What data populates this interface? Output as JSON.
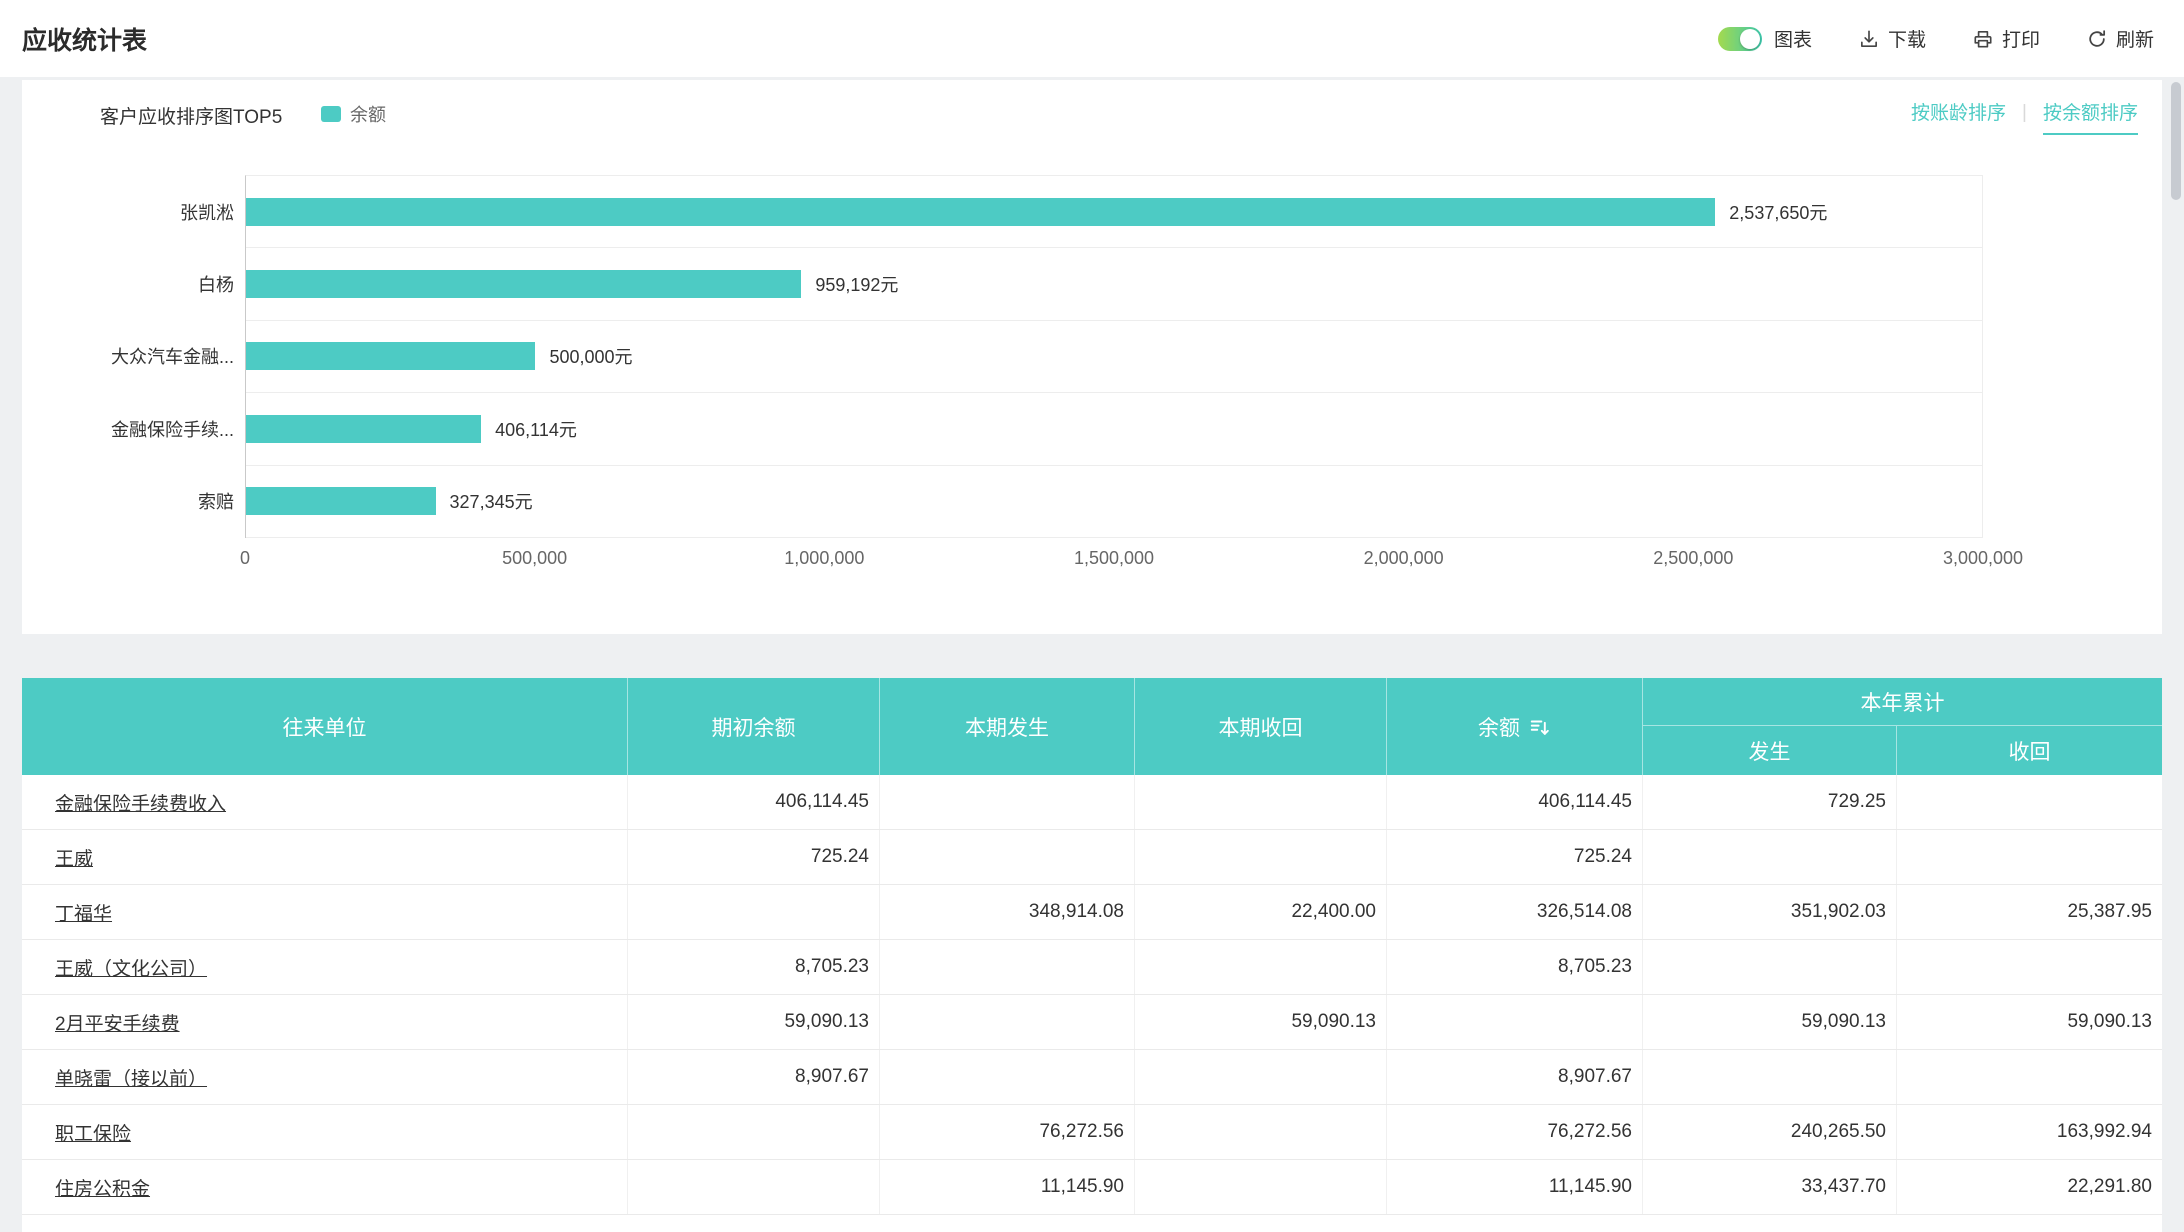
{
  "page": {
    "title": "应收统计表"
  },
  "toolbar": {
    "chart_toggle_label": "图表",
    "download_label": "下载",
    "print_label": "打印",
    "refresh_label": "刷新",
    "icons": [
      "toggle-switch",
      "download-icon",
      "printer-icon",
      "refresh-icon"
    ]
  },
  "chart_panel": {
    "title": "客户应收排序图TOP5",
    "legend_label": "余额",
    "sort_aging_label": "按账龄排序",
    "sort_divider": "|",
    "sort_balance_label": "按余额排序"
  },
  "chart_data": {
    "type": "bar",
    "orientation": "horizontal",
    "title": "客户应收排序图TOP5",
    "legend": [
      "余额"
    ],
    "legend_position": "top",
    "grid": true,
    "categories": [
      "张凯淞",
      "白杨",
      "大众汽车金融...",
      "金融保险手续...",
      "索赔"
    ],
    "values": [
      2537650,
      959192,
      500000,
      406114,
      327345
    ],
    "value_labels": [
      "2,537,650元",
      "959,192元",
      "500,000元",
      "406,114元",
      "327,345元"
    ],
    "x_ticks": [
      "0",
      "500,000",
      "1,000,000",
      "1,500,000",
      "2,000,000",
      "2,500,000",
      "3,000,000"
    ],
    "xlim": [
      0,
      3000000
    ],
    "xlabel": "",
    "ylabel": ""
  },
  "table": {
    "headers": {
      "counterparty": "往来单位",
      "opening": "期初余额",
      "occurred": "本期发生",
      "recovered": "本期收回",
      "balance": "余额",
      "balance_sort_icon": "sort-descending-icon",
      "ytd_group": "本年累计",
      "ytd_occurred": "发生",
      "ytd_recovered": "收回"
    },
    "rows": [
      {
        "name": "金融保险手续费收入",
        "opening": "406,114.45",
        "occurred": "",
        "recovered": "",
        "balance": "406,114.45",
        "ytd_occurred": "729.25",
        "ytd_recovered": ""
      },
      {
        "name": "王威",
        "opening": "725.24",
        "occurred": "",
        "recovered": "",
        "balance": "725.24",
        "ytd_occurred": "",
        "ytd_recovered": ""
      },
      {
        "name": "丁福华",
        "opening": "",
        "occurred": "348,914.08",
        "recovered": "22,400.00",
        "balance": "326,514.08",
        "ytd_occurred": "351,902.03",
        "ytd_recovered": "25,387.95"
      },
      {
        "name": "王威（文化公司）",
        "opening": "8,705.23",
        "occurred": "",
        "recovered": "",
        "balance": "8,705.23",
        "ytd_occurred": "",
        "ytd_recovered": ""
      },
      {
        "name": "2月平安手续费",
        "opening": "59,090.13",
        "occurred": "",
        "recovered": "59,090.13",
        "balance": "",
        "ytd_occurred": "59,090.13",
        "ytd_recovered": "59,090.13"
      },
      {
        "name": "单晓雷（接以前）",
        "opening": "8,907.67",
        "occurred": "",
        "recovered": "",
        "balance": "8,907.67",
        "ytd_occurred": "",
        "ytd_recovered": ""
      },
      {
        "name": "职工保险",
        "opening": "",
        "occurred": "76,272.56",
        "recovered": "",
        "balance": "76,272.56",
        "ytd_occurred": "240,265.50",
        "ytd_recovered": "163,992.94"
      },
      {
        "name": "住房公积金",
        "opening": "",
        "occurred": "11,145.90",
        "recovered": "",
        "balance": "11,145.90",
        "ytd_occurred": "33,437.70",
        "ytd_recovered": "22,291.80"
      }
    ]
  },
  "colors": {
    "accent": "#4DCBC4",
    "toggle_start": "#A4DA4E",
    "toggle_end": "#3CC8AD",
    "header_text": "#FFFFFF",
    "page_background": "#EEF0F2"
  }
}
